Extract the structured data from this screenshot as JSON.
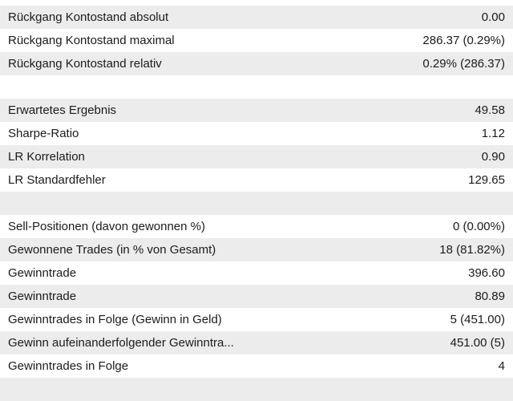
{
  "colors": {
    "row_stripe": "#ececec",
    "background": "#ffffff",
    "text": "#1b1b1b"
  },
  "results_table": {
    "rows": [
      {
        "label": "Rückgang Kontostand absolut",
        "value": "0.00"
      },
      {
        "label": "Rückgang Kontostand maximal",
        "value": "286.37 (0.29%)"
      },
      {
        "label": "Rückgang Kontostand relativ",
        "value": "0.29% (286.37)"
      },
      {
        "label": "",
        "value": ""
      },
      {
        "label": "Erwartetes Ergebnis",
        "value": "49.58"
      },
      {
        "label": "Sharpe-Ratio",
        "value": "1.12"
      },
      {
        "label": "LR Korrelation",
        "value": "0.90"
      },
      {
        "label": "LR Standardfehler",
        "value": "129.65"
      },
      {
        "label": "",
        "value": ""
      },
      {
        "label": "Sell-Positionen (davon gewonnen %)",
        "value": "0 (0.00%)"
      },
      {
        "label": "Gewonnene Trades (in % von Gesamt)",
        "value": "18 (81.82%)"
      },
      {
        "label": "Gewinntrade",
        "value": "396.60"
      },
      {
        "label": "Gewinntrade",
        "value": "80.89"
      },
      {
        "label": "Gewinntrades in Folge (Gewinn in Geld)",
        "value": "5 (451.00)"
      },
      {
        "label": "Gewinn aufeinanderfolgender Gewinntra...",
        "value": "451.00 (5)"
      },
      {
        "label": "Gewinntrades in Folge",
        "value": "4"
      },
      {
        "label": "",
        "value": ""
      }
    ]
  }
}
